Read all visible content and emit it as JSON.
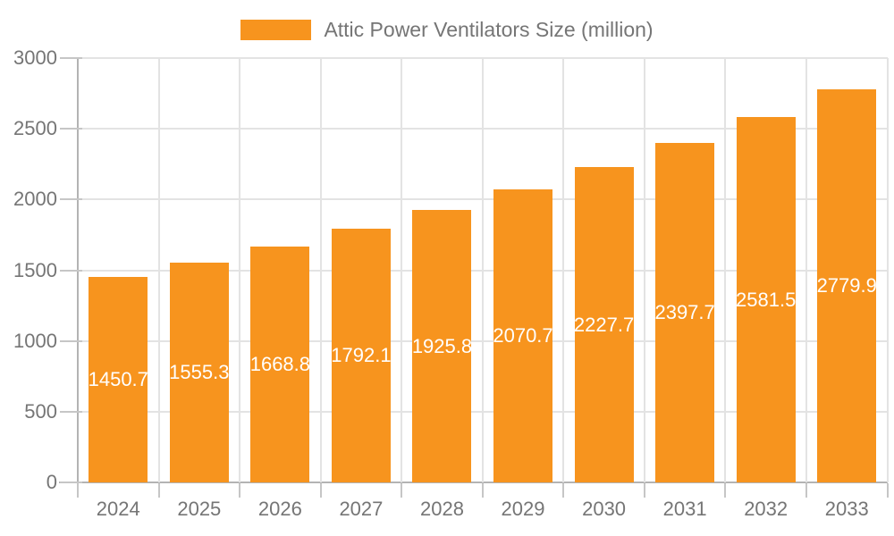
{
  "legend": {
    "label": "Attic Power Ventilators Size (million)"
  },
  "chart_data": {
    "type": "bar",
    "title": "Attic Power Ventilators Size (million)",
    "categories": [
      "2024",
      "2025",
      "2026",
      "2027",
      "2028",
      "2029",
      "2030",
      "2031",
      "2032",
      "2033"
    ],
    "values": [
      1450.7,
      1555.3,
      1668.8,
      1792.1,
      1925.8,
      2070.7,
      2227.7,
      2397.7,
      2581.5,
      2779.9
    ],
    "bar_labels": [
      "1450.7",
      "1555.3",
      "1668.8",
      "1792.1",
      "1925.8",
      "2070.7",
      "2227.7",
      "2397.7",
      "2581.5",
      "2779.9"
    ],
    "xlabel": "",
    "ylabel": "",
    "ylim": [
      0,
      3000
    ],
    "yticks": [
      0,
      500,
      1000,
      1500,
      2000,
      2500,
      3000
    ],
    "grid": true,
    "legend_position": "top",
    "bar_labels_clipped_to_bar_width": true,
    "colors": {
      "bar": "#F7941E",
      "bar_label": "#FFFFFF",
      "axis_line": "#B3B3B3",
      "tick": "#C6C6C6",
      "gridline": "#E3E3E3",
      "text": "#757575",
      "background": "#FFFFFF"
    }
  }
}
